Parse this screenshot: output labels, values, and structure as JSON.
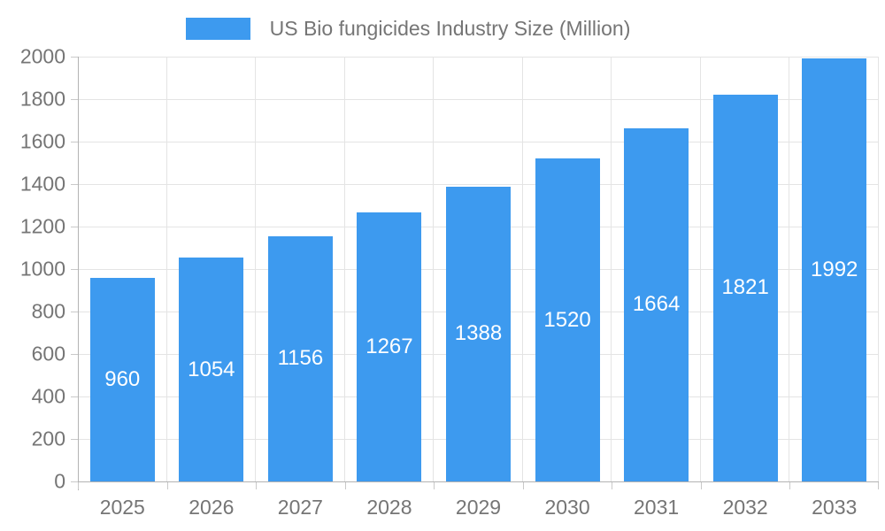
{
  "chart_data": {
    "type": "bar",
    "title": "US Bio fungicides Industry Size (Million)",
    "categories": [
      "2025",
      "2026",
      "2027",
      "2028",
      "2029",
      "2030",
      "2031",
      "2032",
      "2033"
    ],
    "values": [
      960,
      1054,
      1156,
      1267,
      1388,
      1520,
      1664,
      1821,
      1992
    ],
    "bar_labels": [
      "960",
      "1054",
      "1156",
      "1267",
      "1388",
      "1520",
      "1664",
      "1821",
      "1992"
    ],
    "xlabel": "",
    "ylabel": "",
    "ylim": [
      0,
      2000
    ],
    "ytick_step": 200,
    "ytick_labels": [
      "0",
      "200",
      "400",
      "600",
      "800",
      "1000",
      "1200",
      "1400",
      "1600",
      "1800",
      "2000"
    ],
    "grid": "horizontal-and-vertical",
    "legend_position": "top-center",
    "colors": {
      "bar": "#3D9AEF",
      "bar_value_text": "#FFFFFF",
      "axis_text": "#757575",
      "legend_text": "#757575",
      "gridline": "#E4E4E4",
      "axis_line": "#B3B3B3",
      "tick": "#C9C9C9",
      "background": "#FFFFFF"
    }
  }
}
